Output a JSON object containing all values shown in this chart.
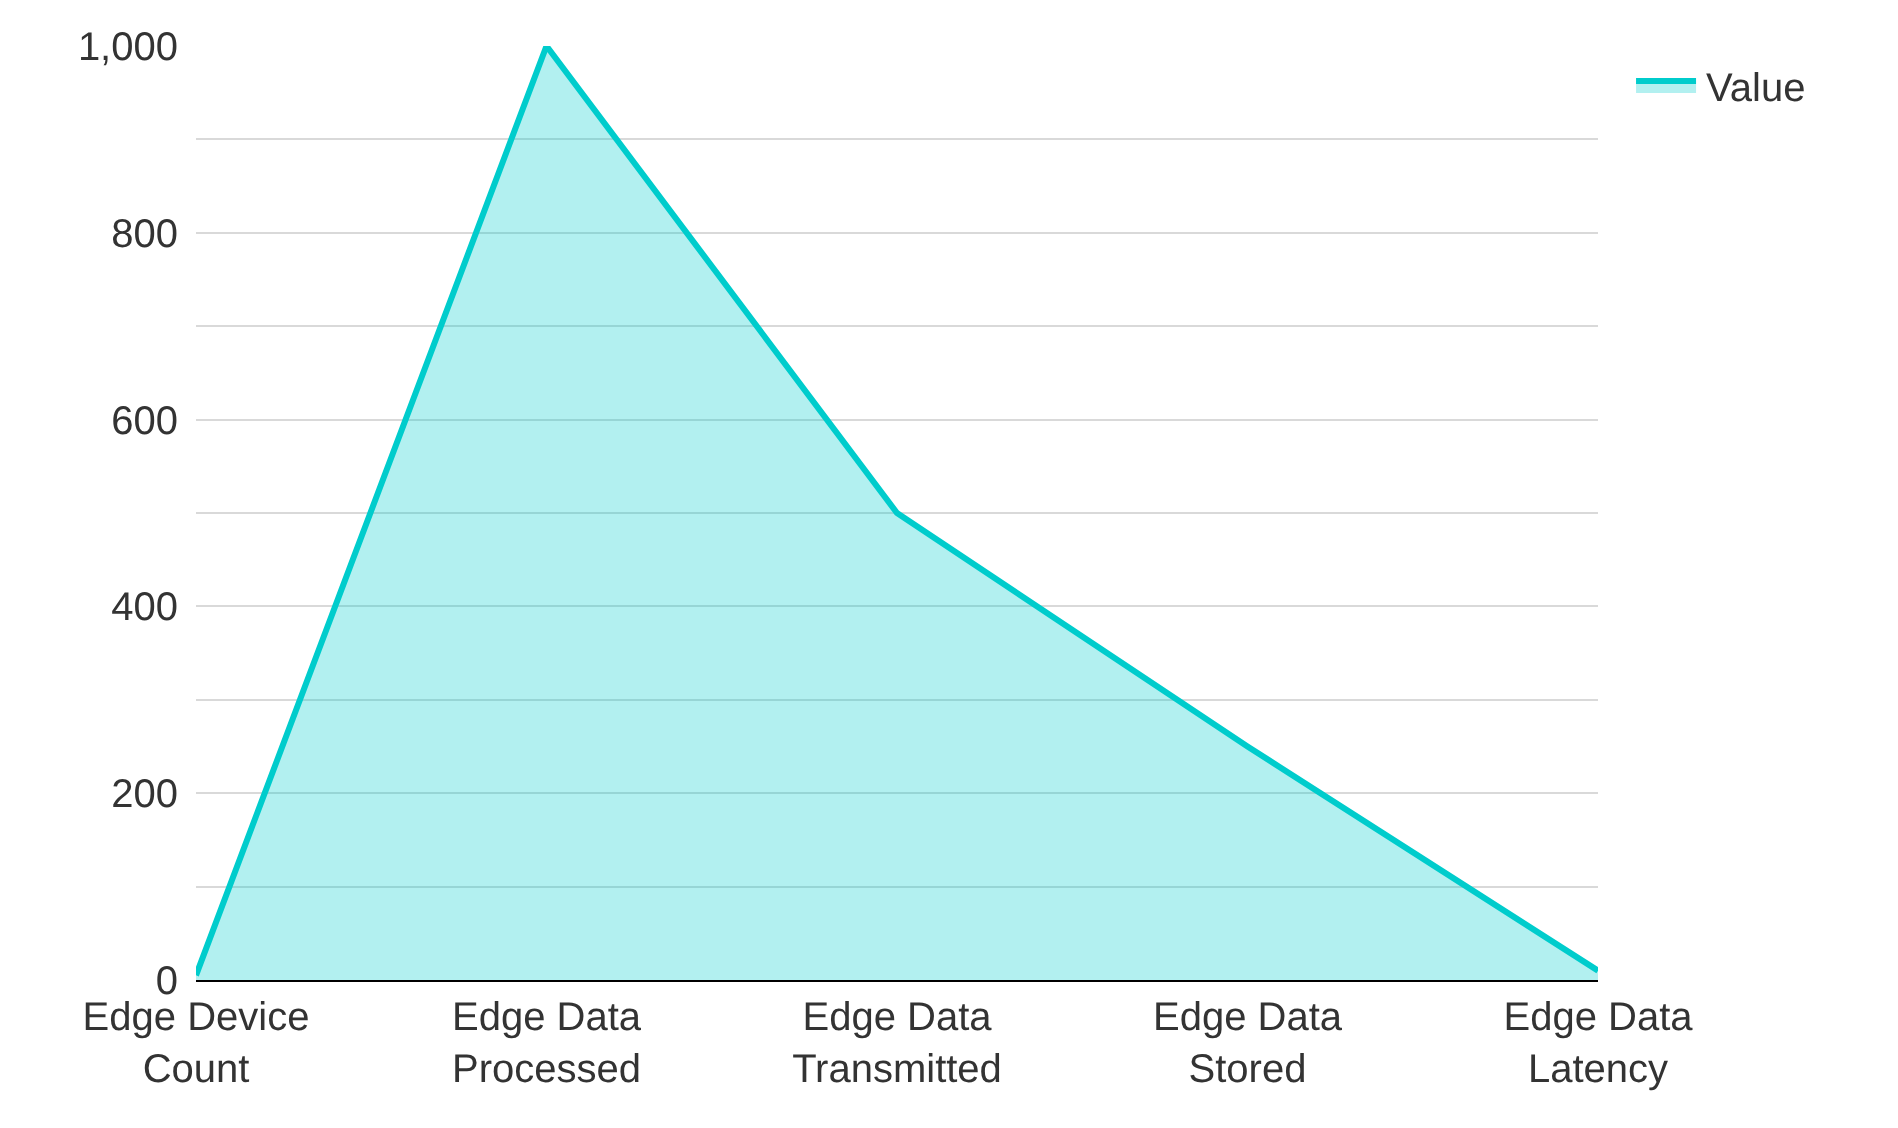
{
  "chart_data": {
    "type": "area",
    "categories": [
      "Edge Device Count",
      "Edge Data Processed",
      "Edge Data Transmitted",
      "Edge Data Stored",
      "Edge Data Latency"
    ],
    "series": [
      {
        "name": "Value",
        "color": "#00cccc",
        "values": [
          5,
          1000,
          500,
          250,
          10
        ]
      }
    ],
    "ylim": [
      0,
      1000
    ],
    "yticks": [
      0,
      {
        "value": 100,
        "label": null
      },
      200,
      {
        "value": 300,
        "label": null
      },
      400,
      {
        "value": 500,
        "label": null
      },
      600,
      {
        "value": 700,
        "label": null
      },
      800,
      {
        "value": 900,
        "label": null
      },
      {
        "value": 1000,
        "label": "1,000"
      }
    ],
    "grid": "y",
    "legend": "top right",
    "marker": "none",
    "line_style": "solid"
  }
}
